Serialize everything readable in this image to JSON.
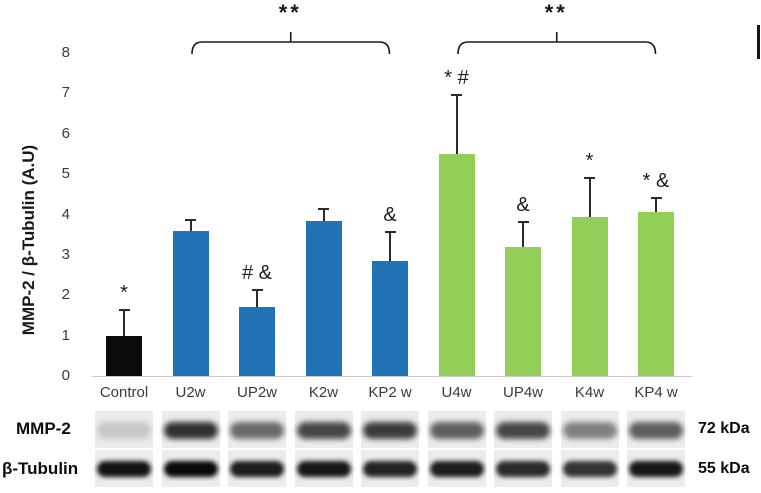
{
  "chart_data": {
    "type": "bar",
    "title": "",
    "xlabel": "",
    "ylabel": "MMP-2 / β-Tubulin (A.U)",
    "ylim": [
      0,
      8
    ],
    "yticks": [
      0,
      1,
      2,
      3,
      4,
      5,
      6,
      7,
      8
    ],
    "grid": false,
    "legend_position": "none",
    "categories": [
      "Control",
      "U2w",
      "UP2w",
      "K2w",
      "KP2 w",
      "U4w",
      "UP4w",
      "K4w",
      "KP4 w"
    ],
    "values": [
      1.0,
      3.6,
      1.7,
      3.85,
      2.85,
      5.5,
      3.2,
      3.95,
      4.05
    ],
    "errors_up": [
      0.65,
      0.3,
      0.46,
      0.32,
      0.74,
      1.48,
      0.63,
      0.97,
      0.38
    ],
    "bar_colors": [
      "#0b0b0b",
      "#2272B6",
      "#2272B6",
      "#2272B6",
      "#2272B6",
      "#92CE58",
      "#92CE58",
      "#92CE58",
      "#92CE58"
    ],
    "annotations": [
      "*",
      "",
      "# &",
      "",
      "&",
      "* #",
      "&",
      "*",
      "* &"
    ],
    "brackets": [
      {
        "label": "**",
        "from_index": 1,
        "to_index": 4
      },
      {
        "label": "**",
        "from_index": 5,
        "to_index": 8
      }
    ]
  },
  "blot": {
    "rows": [
      {
        "label": "MMP-2",
        "size_label": "72 kDa",
        "band_intensities": [
          0.15,
          0.8,
          0.55,
          0.7,
          0.75,
          0.6,
          0.7,
          0.45,
          0.6
        ]
      },
      {
        "label": "β-Tubulin",
        "size_label": "55 kDa",
        "band_intensities": [
          0.92,
          0.96,
          0.88,
          0.9,
          0.85,
          0.88,
          0.82,
          0.78,
          0.9
        ]
      }
    ]
  },
  "colors": {
    "blue_2w": "#2272B6",
    "green_4w": "#92CE58",
    "control_black": "#0b0b0b",
    "axis_text": "#3b3b3b",
    "baseline_gray": "#c9c9c9"
  }
}
